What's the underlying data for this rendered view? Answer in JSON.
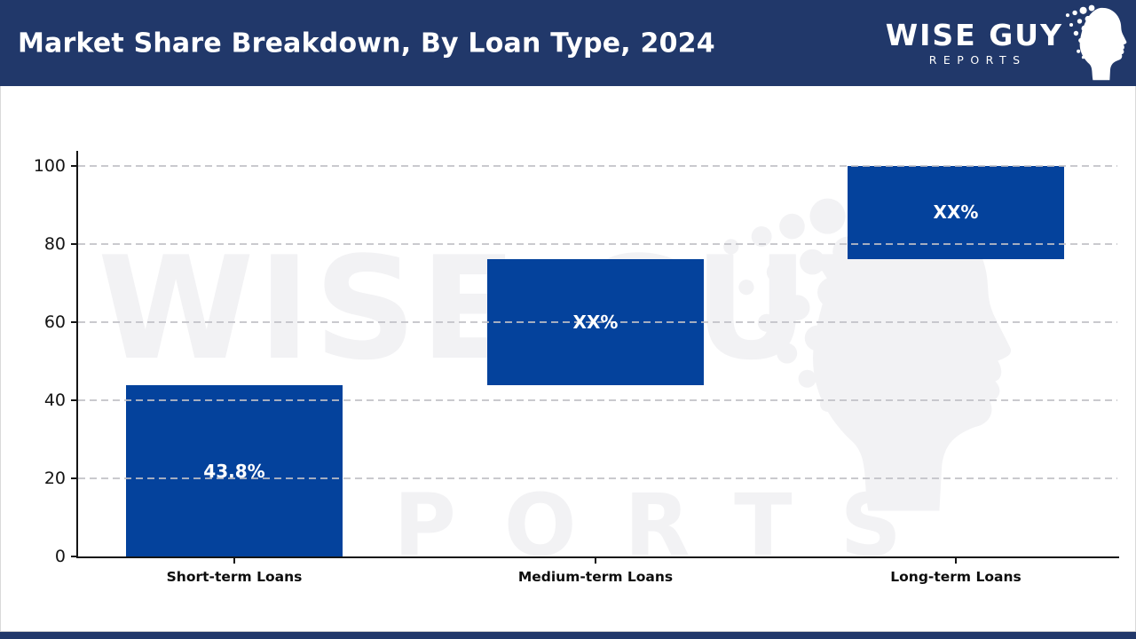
{
  "header": {
    "title": "Market Share Breakdown, By Loan Type, 2024",
    "logo": {
      "line1": "WISE GUY",
      "line2": "REPORTS"
    }
  },
  "watermark": {
    "line1": "WISE GUY",
    "line2": "REPORTS"
  },
  "colors": {
    "header_bg": "#21386a",
    "bar": "#04429c",
    "bar_label": "#ffffff",
    "grid": "#d4d4d8",
    "axis": "#151515",
    "watermark": "#f2f2f4"
  },
  "chart_data": {
    "type": "bar",
    "subtype": "waterfall",
    "title": "Market Share Breakdown, By Loan Type, 2024",
    "categories": [
      "Short-term Loans",
      "Medium-term Loans",
      "Long-term Loans"
    ],
    "segments": [
      {
        "category": "Short-term Loans",
        "start": 0,
        "end": 43.8,
        "label": "43.8%"
      },
      {
        "category": "Medium-term Loans",
        "start": 43.8,
        "end": 76.2,
        "label": "XX%"
      },
      {
        "category": "Long-term Loans",
        "start": 76.2,
        "end": 100,
        "label": "XX%"
      }
    ],
    "ylim": [
      0,
      104
    ],
    "yticks": [
      0,
      20,
      40,
      60,
      80,
      100
    ],
    "grid": "horizontal dashed, drawn over bars",
    "legend": "none",
    "xlabel": "",
    "ylabel": ""
  }
}
